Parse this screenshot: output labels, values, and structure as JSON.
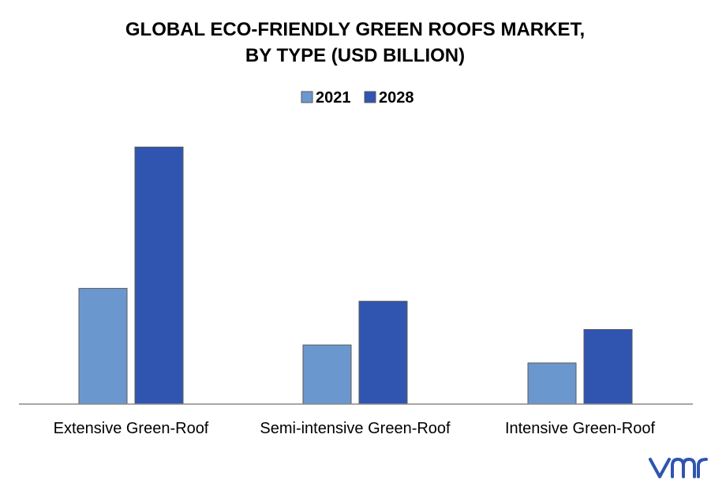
{
  "chart_data": {
    "type": "bar",
    "title_lines": [
      "GLOBAL ECO-FRIENDLY GREEN ROOFS MARKET,",
      "BY TYPE (USD BILLION)"
    ],
    "categories": [
      "Extensive Green-Roof",
      "Semi-intensive Green-Roof",
      "Intensive Green-Roof"
    ],
    "series": [
      {
        "name": "2021",
        "values": [
          4.5,
          2.3,
          1.6
        ]
      },
      {
        "name": "2028",
        "values": [
          10.0,
          4.0,
          2.9
        ]
      }
    ],
    "ylim": [
      0,
      10.5
    ],
    "grid": false,
    "y_axis_visible": false,
    "legend_position": "top-center"
  },
  "colors": {
    "2021": "#6b97cf",
    "2028": "#2f55b0",
    "bar_border": "#5a5a5a",
    "axis": "#888888",
    "logo": "#2f55b0"
  },
  "logo": {
    "text": "vmr",
    "icon": "vmr-logo-icon"
  }
}
